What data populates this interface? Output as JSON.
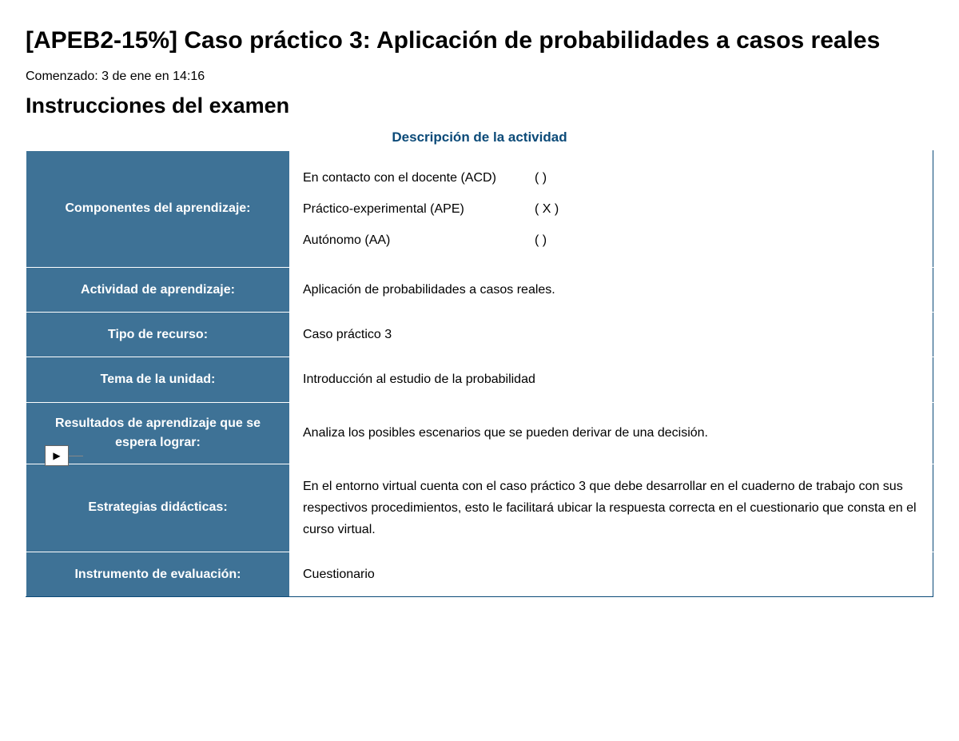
{
  "colors": {
    "header_cell_bg": "#3e7296",
    "header_cell_text": "#ffffff",
    "caption_text": "#0b4a78",
    "table_outer_border": "#0b4a78",
    "body_bg": "#ffffff",
    "text": "#000000"
  },
  "page_title": "[APEB2-15%] Caso práctico 3: Aplicación de probabilidades a casos reales",
  "started": {
    "label": "Comenzado:",
    "value": "3 de ene en 14:16"
  },
  "section_title": "Instrucciones del examen",
  "caption": "Descripción de la actividad",
  "expand_tab": "▶",
  "rows": {
    "componentes": {
      "label": "Componentes del aprendizaje:",
      "items": [
        {
          "text": "En contacto con el docente (ACD)",
          "mark": "(      )"
        },
        {
          "text": "Práctico-experimental (APE)",
          "mark": "(  X  )"
        },
        {
          "text": "Autónomo (AA)",
          "mark": "(      )"
        }
      ]
    },
    "actividad": {
      "label": "Actividad de aprendizaje:",
      "value": "Aplicación de probabilidades a casos reales."
    },
    "tipo": {
      "label": "Tipo de recurso:",
      "value": "Caso práctico 3"
    },
    "tema": {
      "label": "Tema de la unidad:",
      "value": "Introducción al estudio de la probabilidad"
    },
    "resultados": {
      "label": "Resultados de aprendizaje que se espera lograr:",
      "value": "Analiza los posibles escenarios que se pueden derivar de una decisión."
    },
    "estrategias": {
      "label": "Estrategias didácticas:",
      "value": "En el entorno virtual cuenta con el caso práctico 3 que debe desarrollar en el cuaderno de trabajo con sus respectivos procedimientos, esto le facilitará ubicar la respuesta correcta en el cuestionario que consta en el curso virtual."
    },
    "instrumento": {
      "label": "Instrumento de evaluación:",
      "value": "Cuestionario"
    }
  }
}
